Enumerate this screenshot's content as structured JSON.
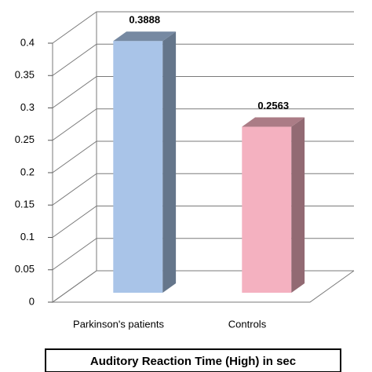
{
  "chart_data": {
    "type": "bar",
    "title": "Auditory Reaction Time (High) in sec",
    "categories": [
      "Parkinson's patients",
      "Controls"
    ],
    "values": [
      0.3888,
      0.2563
    ],
    "colors": [
      "#a9c4e8",
      "#f4b1c0"
    ],
    "ylim": [
      0,
      0.4
    ],
    "yticks": [
      0,
      0.05,
      0.1,
      0.15,
      0.2,
      0.25,
      0.3,
      0.35,
      0.4
    ],
    "grid": true
  }
}
